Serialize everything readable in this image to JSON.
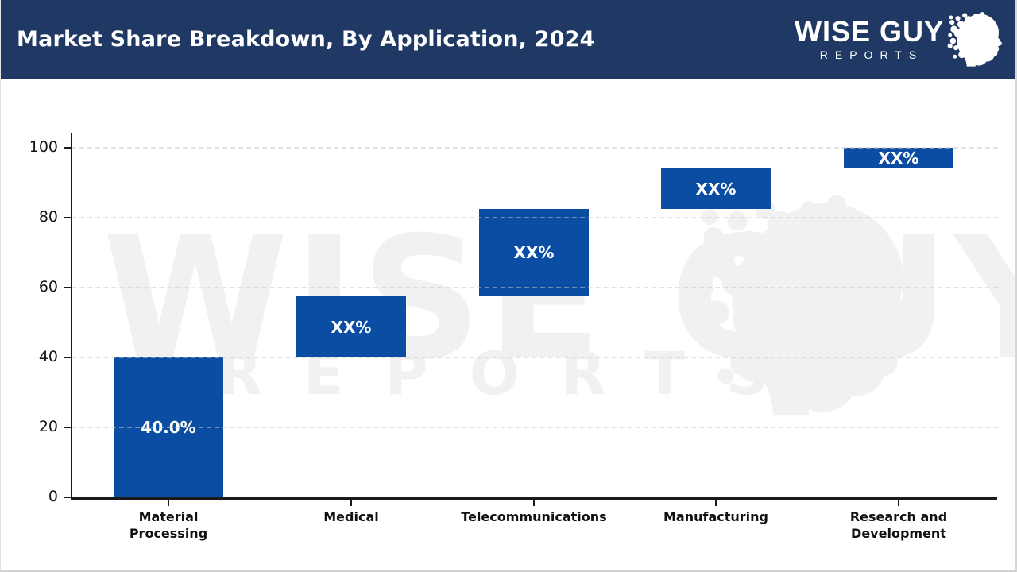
{
  "header": {
    "title": "Market Share Breakdown, By Application, 2024",
    "logo": {
      "wordmark": "WISE GUY",
      "subtext": "REPORTS"
    }
  },
  "watermark": {
    "line1": "WISE GUY",
    "line2": "REPORTS"
  },
  "colors": {
    "header_bg": "#1f3864",
    "bar": "#0b4da2",
    "bar_label": "#ffffff",
    "axis": "#1a1a1a",
    "gridline": "#cbcbcb",
    "watermark": "#f1f1f4",
    "category_label": "#111111"
  },
  "chart_data": {
    "type": "bar",
    "subtype": "waterfall",
    "title": "Market Share Breakdown, By Application, 2024",
    "bars": [
      {
        "category": "Material\nProcessing",
        "start": 0,
        "end": 40,
        "label": "40.0%"
      },
      {
        "category": "Medical",
        "start": 40,
        "end": 57.5,
        "label": "XX%"
      },
      {
        "category": "Telecommunications",
        "start": 57.5,
        "end": 82.5,
        "label": "XX%"
      },
      {
        "category": "Manufacturing",
        "start": 82.5,
        "end": 94,
        "label": "XX%"
      },
      {
        "category": "Research and\nDevelopment",
        "start": 94,
        "end": 100,
        "label": "XX%"
      }
    ],
    "yticks": [
      0,
      20,
      40,
      60,
      80,
      100
    ],
    "ylim": [
      0,
      104
    ],
    "xlabel": "",
    "ylabel": "",
    "grid": "horizontal-dashed",
    "legend": "none"
  }
}
